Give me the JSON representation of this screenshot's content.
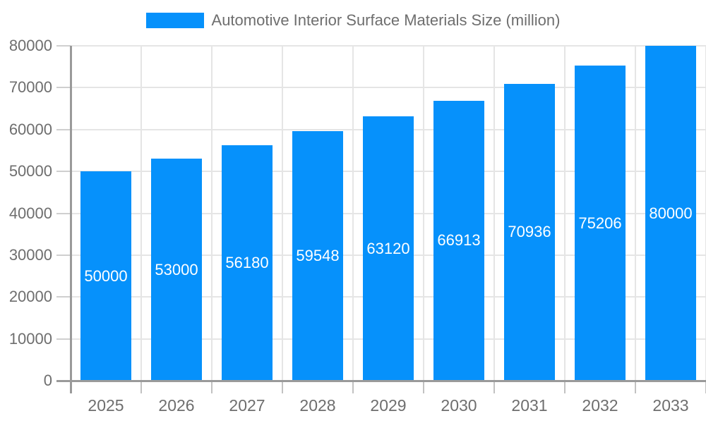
{
  "chart_data": {
    "type": "bar",
    "title": "Automotive Interior Surface Materials Size (million)",
    "categories": [
      "2025",
      "2026",
      "2027",
      "2028",
      "2029",
      "2030",
      "2031",
      "2032",
      "2033"
    ],
    "values": [
      50000,
      53000,
      56180,
      59548,
      63120,
      66913,
      70936,
      75206,
      80000
    ],
    "data_labels": [
      "50000",
      "53000",
      "56180",
      "59548",
      "63120",
      "66913",
      "70936",
      "75206",
      "80000"
    ],
    "ytick_labels": [
      "0",
      "10000",
      "20000",
      "30000",
      "40000",
      "50000",
      "60000",
      "70000",
      "80000"
    ],
    "ylim": [
      0,
      80000
    ],
    "ytick_step": 10000,
    "xlabel": "",
    "ylabel": "",
    "grid": true,
    "legend_position": "top",
    "colors": {
      "bar": "#0691fb",
      "axis_text": "#6e6e6e",
      "data_label_text": "#ffffff",
      "grid_line": "#e5e5e5",
      "axis_line": "#9a9a9a"
    }
  }
}
